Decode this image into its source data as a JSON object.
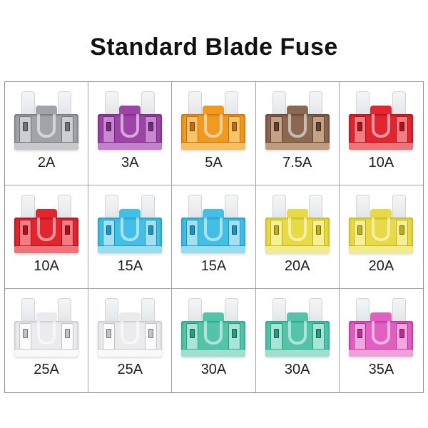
{
  "title": "Standard Blade Fuse",
  "grid": {
    "columns": 5,
    "rows": 3,
    "fuses": [
      {
        "label": "2A",
        "color_name": "gray",
        "color": "#a2a3a9",
        "dark": "#717177",
        "light": "#cdced2"
      },
      {
        "label": "3A",
        "color_name": "purple",
        "color": "#9d44a8",
        "dark": "#742b7e",
        "light": "#c788cf"
      },
      {
        "label": "5A",
        "color_name": "orange",
        "color": "#f09a20",
        "dark": "#c06f0a",
        "light": "#f8c468"
      },
      {
        "label": "7.5A",
        "color_name": "brown",
        "color": "#8a6852",
        "dark": "#5d4336",
        "light": "#c4a384"
      },
      {
        "label": "10A",
        "color_name": "red",
        "color": "#e32530",
        "dark": "#ad1119",
        "light": "#f17d82"
      },
      {
        "label": "10A",
        "color_name": "red",
        "color": "#e32530",
        "dark": "#ad1119",
        "light": "#f17d82"
      },
      {
        "label": "15A",
        "color_name": "blue",
        "color": "#43bfe6",
        "dark": "#1795c5",
        "light": "#a2e0f2"
      },
      {
        "label": "15A",
        "color_name": "blue",
        "color": "#43bfe6",
        "dark": "#1795c5",
        "light": "#a2e0f2"
      },
      {
        "label": "20A",
        "color_name": "yellow",
        "color": "#e7da45",
        "dark": "#bfae14",
        "light": "#f5ef96"
      },
      {
        "label": "20A",
        "color_name": "yellow",
        "color": "#e7da45",
        "dark": "#bfae14",
        "light": "#f5ef96"
      },
      {
        "label": "25A",
        "color_name": "clear",
        "color": "#ebebee",
        "dark": "#c2c2c8",
        "light": "#fbfbfc"
      },
      {
        "label": "25A",
        "color_name": "clear",
        "color": "#ebebee",
        "dark": "#c2c2c8",
        "light": "#fbfbfc"
      },
      {
        "label": "30A",
        "color_name": "green",
        "color": "#53c4a8",
        "dark": "#279c82",
        "light": "#a8e5d5"
      },
      {
        "label": "30A",
        "color_name": "green",
        "color": "#53c4a8",
        "dark": "#279c82",
        "light": "#a8e5d5"
      },
      {
        "label": "35A",
        "color_name": "pink",
        "color": "#e05fc0",
        "dark": "#bb2b98",
        "light": "#f2a8df"
      }
    ]
  },
  "colors": {
    "background": "#ffffff",
    "grid_outer_border": "#8f8f8f",
    "grid_inner_line": "#a3a3a3",
    "blade_fill": "#eef0f2",
    "blade_border": "#d0d4d8",
    "title_text": "#111111",
    "label_text": "#1e1e1e"
  }
}
